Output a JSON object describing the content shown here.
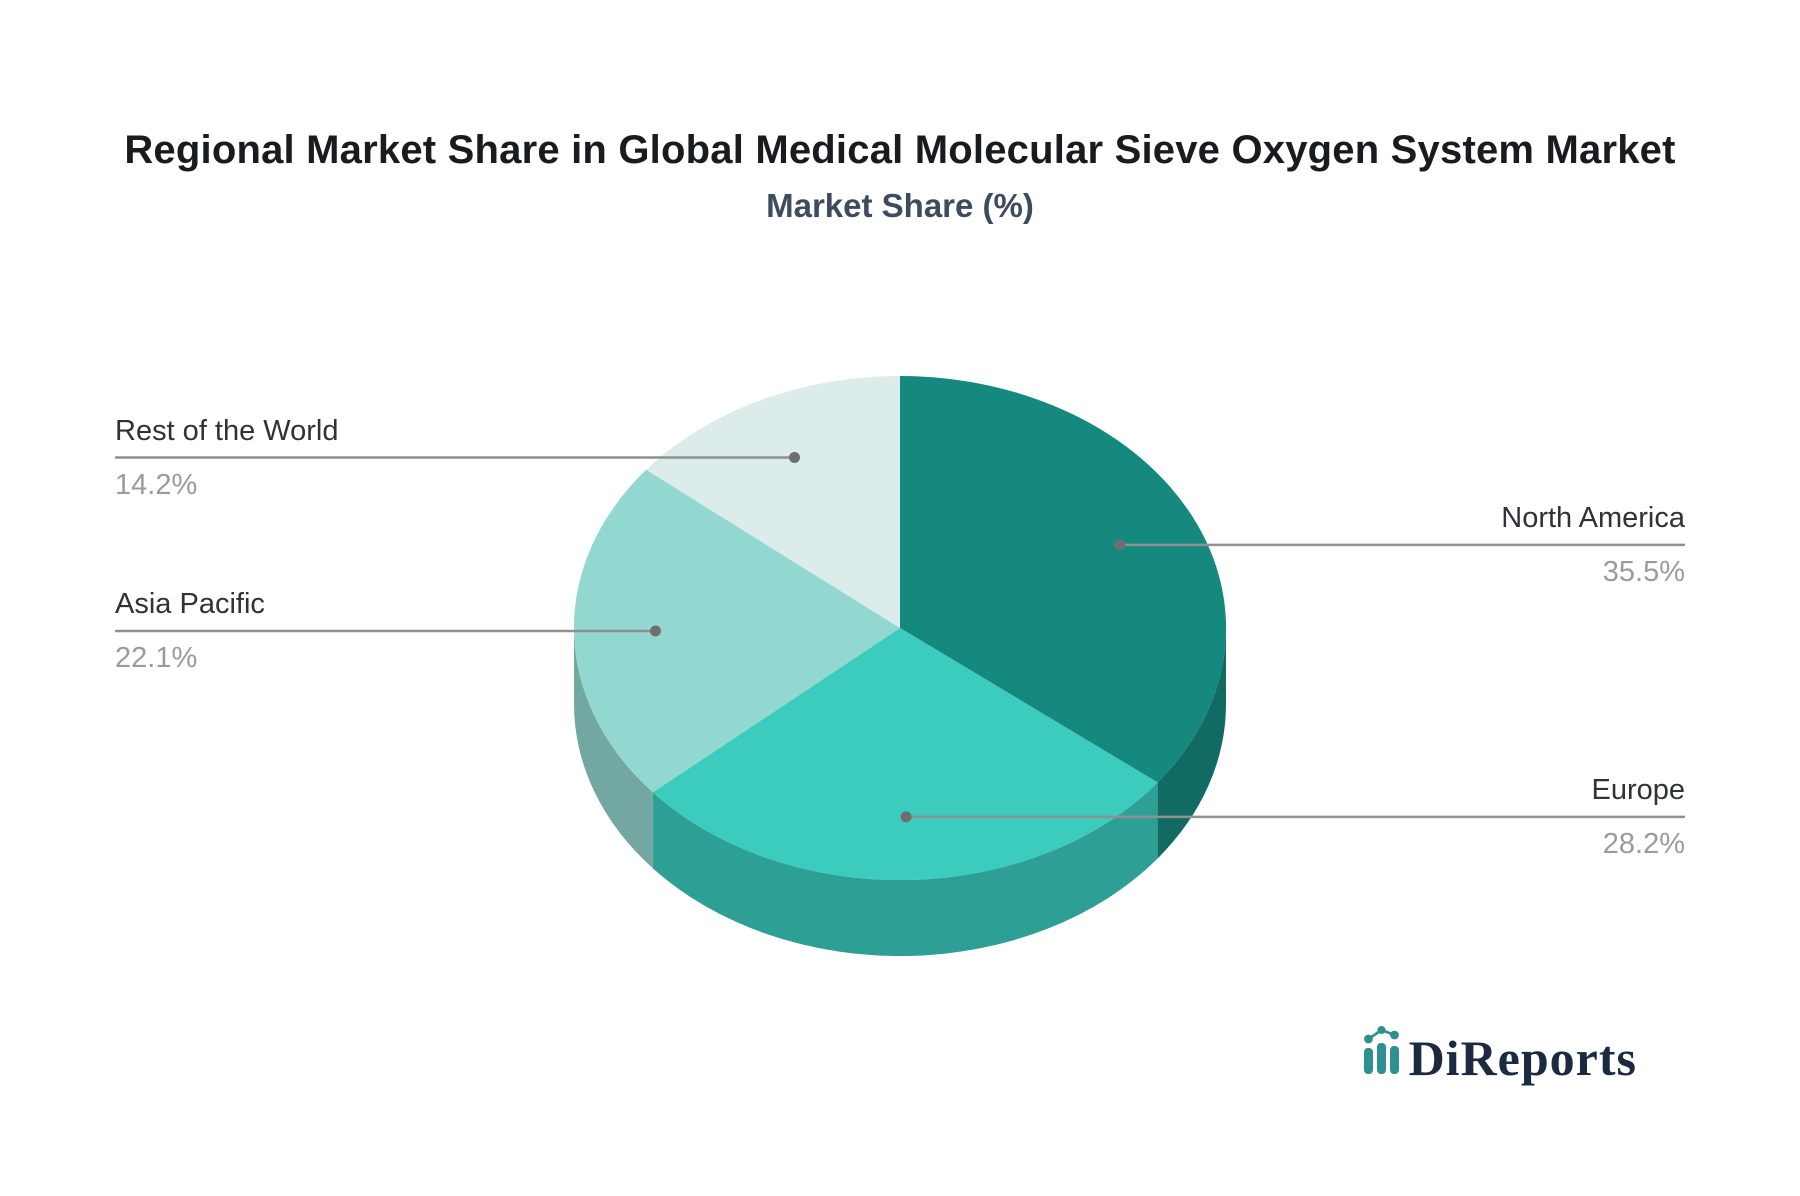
{
  "branding": {
    "logo_text": "DiReports",
    "logo_icon": "bar-chart-icon",
    "logo_icon_color": "#2f9090",
    "logo_text_color": "#1b2a40"
  },
  "colors": {
    "background": "#ffffff",
    "title_text": "#191c1f",
    "subtitle_text": "#3e4b5e",
    "callout_name_text": "#2e3338",
    "callout_value_text": "#9b9b9b",
    "leader_line": "#909090",
    "leader_dot": "#6e6e6e"
  },
  "chart_data": {
    "type": "pie",
    "is_3d": true,
    "title": "Regional Market Share in Global Medical Molecular Sieve Oxygen System Market",
    "subtitle": "Market Share (%)",
    "unit": "%",
    "start_angle_deg": 0,
    "direction": "clockwise",
    "legend_position": "callout-labels",
    "slices": [
      {
        "label": "North America",
        "value": 35.5,
        "display": "35.5%",
        "color": "#16897f"
      },
      {
        "label": "Europe",
        "value": 28.2,
        "display": "28.2%",
        "color": "#3bccbe"
      },
      {
        "label": "Asia Pacific",
        "value": 22.1,
        "display": "22.1%",
        "color": "#93d8d0"
      },
      {
        "label": "Rest of the World",
        "value": 14.2,
        "display": "14.2%",
        "color": "#dceceb"
      }
    ]
  }
}
